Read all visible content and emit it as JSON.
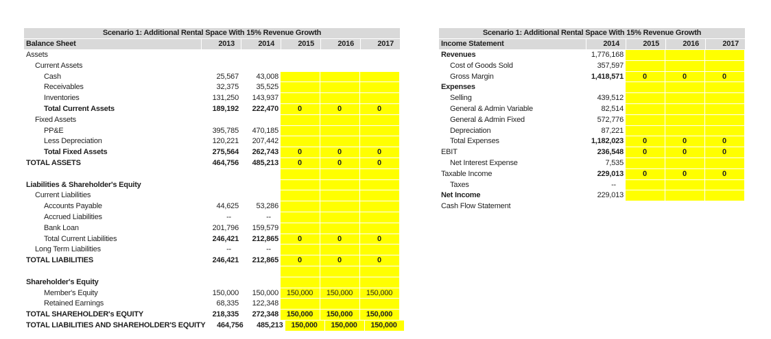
{
  "colors": {
    "header_fill": "#d9d9d9",
    "highlight_fill": "#ffff00",
    "grid_line": "#ffffff",
    "text": "#1f1f1f"
  },
  "tables": [
    {
      "name": "balance-sheet",
      "title": "Scenario 1: Additional Rental Space With 15% Revenue Growth",
      "header_label": "Balance Sheet",
      "years": [
        "2013",
        "2014",
        "2015",
        "2016",
        "2017"
      ],
      "highlight_start_col": 2,
      "rows": [
        {
          "label": "Assets",
          "indent": 0,
          "bold_label": false,
          "bold_values": false,
          "highlight": false,
          "values": [
            "",
            "",
            "",
            "",
            ""
          ]
        },
        {
          "label": "Current Assets",
          "indent": 1,
          "bold_label": false,
          "bold_values": false,
          "highlight": false,
          "values": [
            "",
            "",
            "",
            "",
            ""
          ]
        },
        {
          "label": "Cash",
          "indent": 2,
          "bold_label": false,
          "bold_values": false,
          "highlight": true,
          "values": [
            "25,567",
            "43,008",
            "",
            "",
            ""
          ]
        },
        {
          "label": "Receivables",
          "indent": 2,
          "bold_label": false,
          "bold_values": false,
          "highlight": true,
          "values": [
            "32,375",
            "35,525",
            "",
            "",
            ""
          ]
        },
        {
          "label": "Inventories",
          "indent": 2,
          "bold_label": false,
          "bold_values": false,
          "highlight": true,
          "values": [
            "131,250",
            "143,937",
            "",
            "",
            ""
          ]
        },
        {
          "label": "Total Current Assets",
          "indent": 2,
          "bold_label": true,
          "bold_values": true,
          "highlight": true,
          "values": [
            "189,192",
            "222,470",
            "0",
            "0",
            "0"
          ]
        },
        {
          "label": "Fixed Assets",
          "indent": 1,
          "bold_label": false,
          "bold_values": false,
          "highlight": true,
          "values": [
            "",
            "",
            "",
            "",
            ""
          ]
        },
        {
          "label": "PP&E",
          "indent": 2,
          "bold_label": false,
          "bold_values": false,
          "highlight": true,
          "values": [
            "395,785",
            "470,185",
            "",
            "",
            ""
          ]
        },
        {
          "label": "Less Depreciation",
          "indent": 2,
          "bold_label": false,
          "bold_values": false,
          "highlight": true,
          "values": [
            "120,221",
            "207,442",
            "",
            "",
            ""
          ]
        },
        {
          "label": "Total Fixed Assets",
          "indent": 2,
          "bold_label": true,
          "bold_values": true,
          "highlight": true,
          "values": [
            "275,564",
            "262,743",
            "0",
            "0",
            "0"
          ]
        },
        {
          "label": "TOTAL ASSETS",
          "indent": 0,
          "bold_label": true,
          "bold_values": true,
          "highlight": true,
          "values": [
            "464,756",
            "485,213",
            "0",
            "0",
            "0"
          ]
        },
        {
          "label": "",
          "indent": 0,
          "bold_label": false,
          "bold_values": false,
          "highlight": true,
          "values": [
            "",
            "",
            "",
            "",
            ""
          ]
        },
        {
          "label": "Liabilities & Shareholder's Equity",
          "indent": 0,
          "bold_label": true,
          "bold_values": false,
          "highlight": true,
          "values": [
            "",
            "",
            "",
            "",
            ""
          ]
        },
        {
          "label": "Current Liabilities",
          "indent": 1,
          "bold_label": false,
          "bold_values": false,
          "highlight": true,
          "values": [
            "",
            "",
            "",
            "",
            ""
          ]
        },
        {
          "label": "Accounts Payable",
          "indent": 2,
          "bold_label": false,
          "bold_values": false,
          "highlight": true,
          "values": [
            "44,625",
            "53,286",
            "",
            "",
            ""
          ]
        },
        {
          "label": "Accrued Liabilities",
          "indent": 2,
          "bold_label": false,
          "bold_values": false,
          "highlight": true,
          "values": [
            "--",
            "--",
            "",
            "",
            ""
          ]
        },
        {
          "label": "Bank Loan",
          "indent": 2,
          "bold_label": false,
          "bold_values": false,
          "highlight": true,
          "values": [
            "201,796",
            "159,579",
            "",
            "",
            ""
          ]
        },
        {
          "label": "Total Current Liabilities",
          "indent": 2,
          "bold_label": false,
          "bold_values": true,
          "highlight": true,
          "values": [
            "246,421",
            "212,865",
            "0",
            "0",
            "0"
          ]
        },
        {
          "label": "Long Term Liabilities",
          "indent": 1,
          "bold_label": false,
          "bold_values": false,
          "highlight": true,
          "values": [
            "--",
            "--",
            "",
            "",
            ""
          ]
        },
        {
          "label": "TOTAL LIABILITIES",
          "indent": 0,
          "bold_label": true,
          "bold_values": true,
          "highlight": true,
          "values": [
            "246,421",
            "212,865",
            "0",
            "0",
            "0"
          ]
        },
        {
          "label": "",
          "indent": 0,
          "bold_label": false,
          "bold_values": false,
          "highlight": true,
          "values": [
            "",
            "",
            "",
            "",
            ""
          ]
        },
        {
          "label": "Shareholder's Equity",
          "indent": 0,
          "bold_label": true,
          "bold_values": false,
          "highlight": true,
          "values": [
            "",
            "",
            "",
            "",
            ""
          ]
        },
        {
          "label": "Member's Equity",
          "indent": 2,
          "bold_label": false,
          "bold_values": false,
          "highlight": true,
          "values": [
            "150,000",
            "150,000",
            "150,000",
            "150,000",
            "150,000"
          ]
        },
        {
          "label": "Retained Earnings",
          "indent": 2,
          "bold_label": false,
          "bold_values": false,
          "highlight": true,
          "values": [
            "68,335",
            "122,348",
            "",
            "",
            ""
          ]
        },
        {
          "label": "TOTAL SHAREHOLDER's EQUITY",
          "indent": 0,
          "bold_label": true,
          "bold_values": true,
          "highlight": true,
          "values": [
            "218,335",
            "272,348",
            "150,000",
            "150,000",
            "150,000"
          ]
        },
        {
          "label": "TOTAL LIABILITIES AND SHAREHOLDER'S EQUITY",
          "indent": 0,
          "bold_label": true,
          "bold_values": true,
          "highlight": true,
          "values": [
            "464,756",
            "485,213",
            "150,000",
            "150,000",
            "150,000"
          ]
        }
      ]
    },
    {
      "name": "income-statement",
      "title": "Scenario 1: Additional Rental Space With 15% Revenue Growth",
      "header_label": "Income Statement",
      "years": [
        "2014",
        "2015",
        "2016",
        "2017"
      ],
      "highlight_start_col": 1,
      "rows": [
        {
          "label": "Revenues",
          "indent": 0,
          "bold_label": true,
          "bold_values": false,
          "highlight": true,
          "values": [
            "1,776,168",
            "",
            "",
            ""
          ]
        },
        {
          "label": "Cost of Goods Sold",
          "indent": 1,
          "bold_label": false,
          "bold_values": false,
          "highlight": true,
          "values": [
            "357,597",
            "",
            "",
            ""
          ]
        },
        {
          "label": "Gross Margin",
          "indent": 1,
          "bold_label": false,
          "bold_values": true,
          "highlight": true,
          "values": [
            "1,418,571",
            "0",
            "0",
            "0"
          ]
        },
        {
          "label": "Expenses",
          "indent": 0,
          "bold_label": true,
          "bold_values": false,
          "highlight": true,
          "values": [
            "",
            "",
            "",
            ""
          ]
        },
        {
          "label": "Selling",
          "indent": 1,
          "bold_label": false,
          "bold_values": false,
          "highlight": true,
          "values": [
            "439,512",
            "",
            "",
            ""
          ]
        },
        {
          "label": "General & Admin Variable",
          "indent": 1,
          "bold_label": false,
          "bold_values": false,
          "highlight": true,
          "values": [
            "82,514",
            "",
            "",
            ""
          ]
        },
        {
          "label": "General & Admin Fixed",
          "indent": 1,
          "bold_label": false,
          "bold_values": false,
          "highlight": true,
          "values": [
            "572,776",
            "",
            "",
            ""
          ]
        },
        {
          "label": "Depreciation",
          "indent": 1,
          "bold_label": false,
          "bold_values": false,
          "highlight": true,
          "values": [
            "87,221",
            "",
            "",
            ""
          ]
        },
        {
          "label": "Total Expenses",
          "indent": 1,
          "bold_label": false,
          "bold_values": true,
          "highlight": true,
          "values": [
            "1,182,023",
            "0",
            "0",
            "0"
          ]
        },
        {
          "label": "EBIT",
          "indent": 0,
          "bold_label": false,
          "bold_values": true,
          "highlight": true,
          "values": [
            "236,548",
            "0",
            "0",
            "0"
          ]
        },
        {
          "label": "Net Interest Expense",
          "indent": 1,
          "bold_label": false,
          "bold_values": false,
          "highlight": true,
          "values": [
            "7,535",
            "",
            "",
            ""
          ]
        },
        {
          "label": "Taxable Income",
          "indent": 0,
          "bold_label": false,
          "bold_values": true,
          "highlight": true,
          "values": [
            "229,013",
            "0",
            "0",
            "0"
          ]
        },
        {
          "label": "Taxes",
          "indent": 1,
          "bold_label": false,
          "bold_values": false,
          "highlight": true,
          "values": [
            "--",
            "",
            "",
            ""
          ]
        },
        {
          "label": "Net Income",
          "indent": 0,
          "bold_label": true,
          "bold_values": false,
          "highlight": true,
          "values": [
            "229,013",
            "",
            "",
            ""
          ]
        },
        {
          "label": "Cash Flow Statement",
          "indent": 0,
          "bold_label": false,
          "bold_values": false,
          "highlight": false,
          "values": [
            "",
            "",
            "",
            ""
          ]
        }
      ]
    }
  ]
}
